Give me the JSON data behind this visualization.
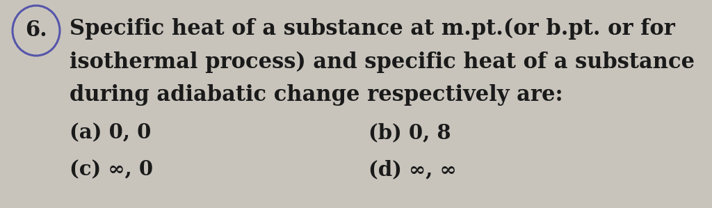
{
  "background_color": "#c8c4bc",
  "question_number": "6.",
  "circle_color": "#5555aa",
  "line1": "Specific heat of a substance at m.pt.(or b.pt. or for",
  "line2": "isothermal process) and specific heat of a substance",
  "line3": "during adiabatic change respectively are:",
  "opt_a_label": "(a)",
  "opt_a_val": " 0, 0",
  "opt_b_label": "(b)",
  "opt_b_val": " 0, 8",
  "opt_c_label": "(c)",
  "opt_c_val": " ∞, 0",
  "opt_d_label": "(d)",
  "opt_d_val": " ∞, ∞",
  "font_color": "#1a1a1a",
  "font_size_main": 22,
  "font_size_opts": 21,
  "font_size_num": 22
}
